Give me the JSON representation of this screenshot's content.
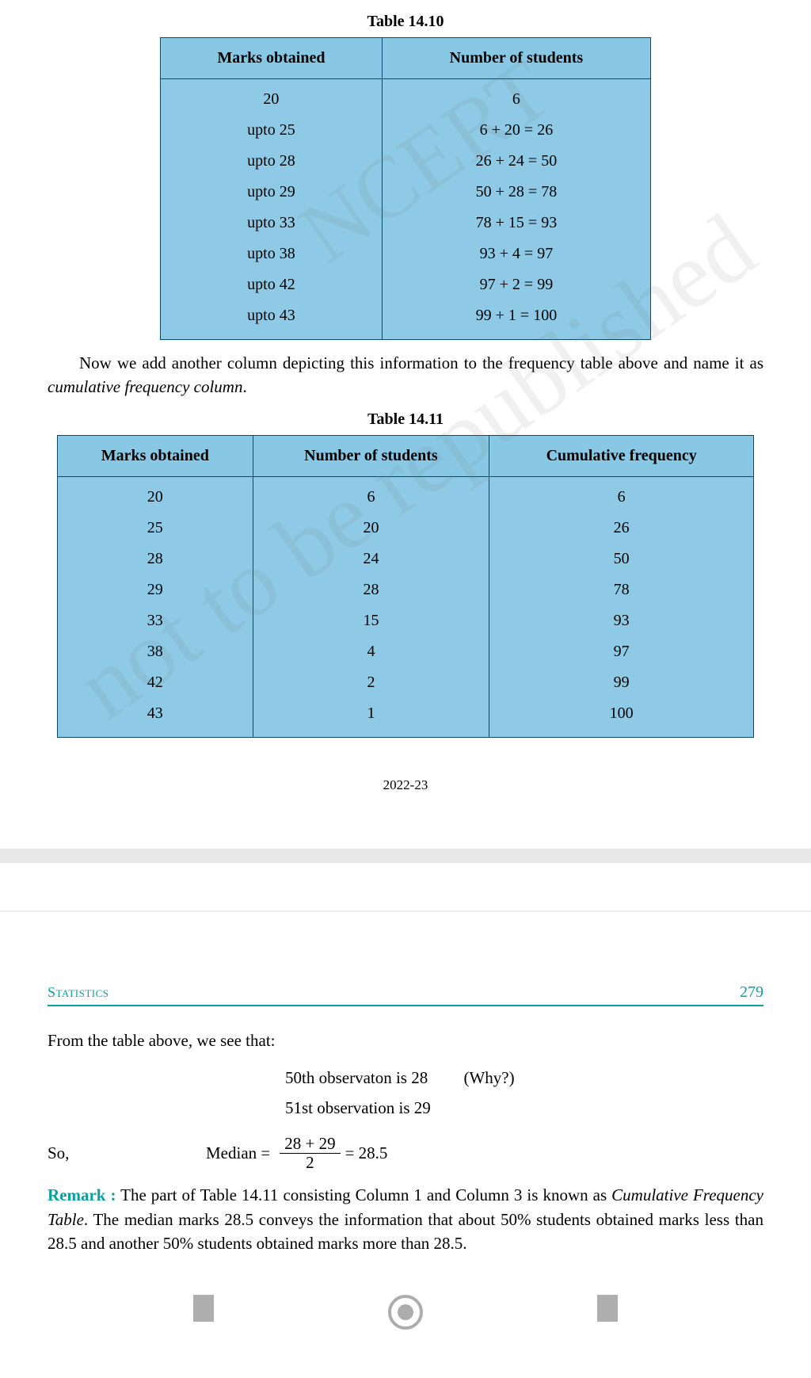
{
  "colors": {
    "table_bg": "#8ecae6",
    "table_border": "#0b4a6f",
    "accent": "#0aa0a0",
    "text": "#000000",
    "watermark": "rgba(120,120,120,0.11)"
  },
  "watermarks": [
    "NCERT",
    "not to be republished"
  ],
  "table1": {
    "caption": "Table 14.10",
    "headers": [
      "Marks obtained",
      "Number of students"
    ],
    "col1": [
      "20",
      "upto 25",
      "upto 28",
      "upto 29",
      "upto 33",
      "upto 38",
      "upto 42",
      "upto 43"
    ],
    "col2": [
      "6",
      "6 + 20 = 26",
      "26 + 24 = 50",
      "50 + 28 = 78",
      "78 + 15 = 93",
      "93 + 4 = 97",
      "97 + 2 = 99",
      "99 + 1 = 100"
    ]
  },
  "para1_a": "Now we add another column depicting this information to the frequency table above and name it as ",
  "para1_b": "cumulative frequency column",
  "para1_c": ".",
  "table2": {
    "caption": "Table 14.11",
    "headers": [
      "Marks obtained",
      "Number of students",
      "Cumulative frequency"
    ],
    "rows": [
      [
        "20",
        "6",
        "6"
      ],
      [
        "25",
        "20",
        "26"
      ],
      [
        "28",
        "24",
        "50"
      ],
      [
        "29",
        "28",
        "78"
      ],
      [
        "33",
        "15",
        "93"
      ],
      [
        "38",
        "4",
        "97"
      ],
      [
        "42",
        "2",
        "99"
      ],
      [
        "43",
        "1",
        "100"
      ]
    ]
  },
  "footer_year": "2022-23",
  "chapter": {
    "name": "Statistics",
    "page": "279"
  },
  "para2": "From the table above, we see that:",
  "obs": {
    "l1a": "50th observaton is 28",
    "l1b": "(Why?)",
    "l2": "51st observation is 29"
  },
  "median": {
    "so": "So,",
    "label": "Median =",
    "num": "28 + 29",
    "den": "2",
    "eq": "= 28.5"
  },
  "remark": {
    "label": "Remark :",
    "text_a": " The part of Table 14.11 consisting Column 1 and Column 3 is known as ",
    "text_b": "Cumulative Frequency Table",
    "text_c": ". The median marks 28.5 conveys the information that about 50% students obtained marks less than 28.5 and another 50% students obtained marks more than 28.5."
  }
}
